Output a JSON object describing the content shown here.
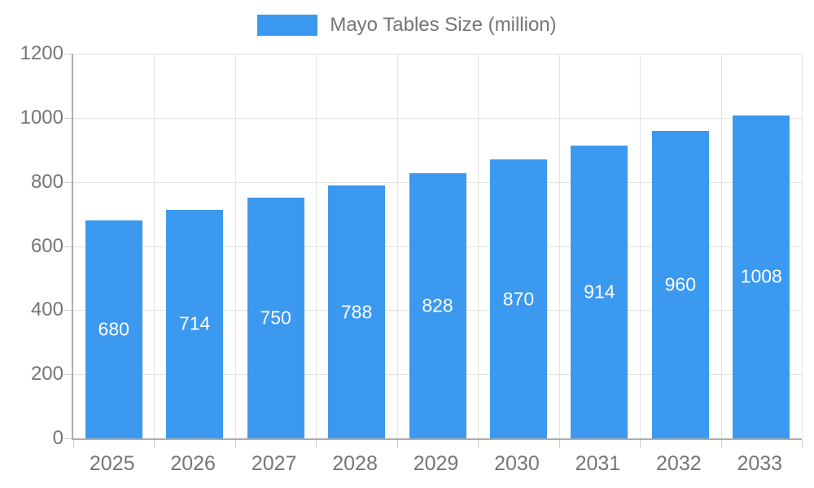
{
  "chart_data": {
    "type": "bar",
    "title": "Mayo Tables Size (million)",
    "categories": [
      "2025",
      "2026",
      "2027",
      "2028",
      "2029",
      "2030",
      "2031",
      "2032",
      "2033"
    ],
    "values": [
      680,
      714,
      750,
      788,
      828,
      870,
      914,
      960,
      1008
    ],
    "value_labels": [
      "680",
      "714",
      "750",
      "788",
      "828",
      "870",
      "914",
      "960",
      "1008"
    ],
    "xlabel": "",
    "ylabel": "",
    "ylim": [
      0,
      1200
    ],
    "ytick_step": 200,
    "ytick_labels": [
      "0",
      "200",
      "400",
      "600",
      "800",
      "1000",
      "1200"
    ],
    "grid": true,
    "legend_position": "top-center",
    "legend_entries": [
      "Mayo Tables Size (million)"
    ],
    "colors": {
      "bar": "#3B99EF",
      "value_label": "#FFFFFF",
      "axis_label": "#757575",
      "gridline": "#E3E3E3",
      "axis_line": "#ADADAD",
      "tick": "#CCCCCC",
      "background": "#FFFFFF"
    }
  }
}
